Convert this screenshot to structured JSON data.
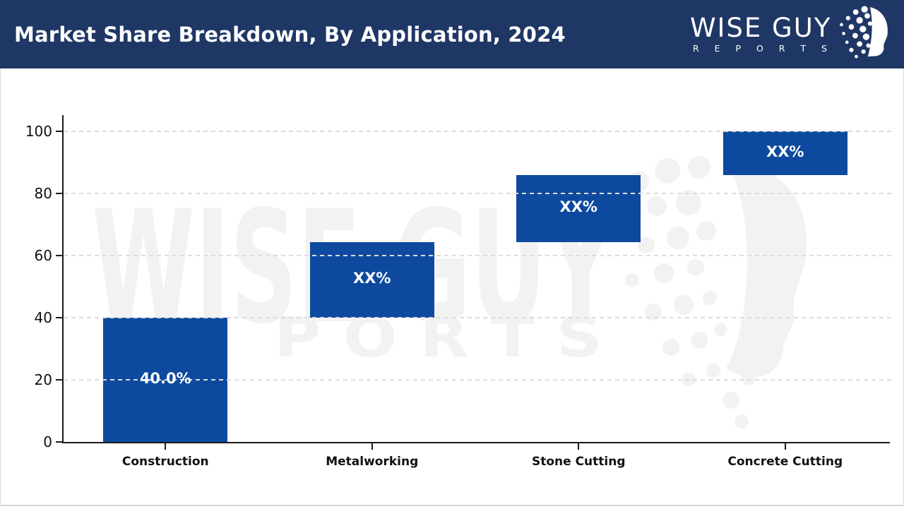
{
  "header": {
    "title": "Market Share Breakdown, By Application, 2024",
    "bg_color": "#1f3765",
    "logo": {
      "wordmark": "WISE GUY",
      "subtext": "R E P O R T S"
    }
  },
  "watermark": {
    "line1": "WISE GUY",
    "line2": "P O R T S"
  },
  "chart_data": {
    "type": "bar",
    "subtype": "waterfall",
    "title": "Market Share Breakdown, By Application, 2024",
    "categories": [
      "Construction",
      "Metalworking",
      "Stone Cutting",
      "Concrete Cutting"
    ],
    "segments": [
      {
        "category": "Construction",
        "start": 0,
        "end": 40,
        "label": "40.0%"
      },
      {
        "category": "Metalworking",
        "start": 40,
        "end": 64.4,
        "label": "XX%"
      },
      {
        "category": "Stone Cutting",
        "start": 64.4,
        "end": 86,
        "label": "XX%"
      },
      {
        "category": "Concrete Cutting",
        "start": 86,
        "end": 100,
        "label": "XX%"
      }
    ],
    "ylim": [
      0,
      100
    ],
    "yticks": [
      0,
      20,
      40,
      60,
      80,
      100
    ],
    "grid": "horizontal-dashed",
    "legend": "none",
    "bar_color": "#0d4a9f",
    "bar_label_color": "#ffffff",
    "axis_color": "#1a1a1a",
    "gridline_color": "#dcdcdc"
  }
}
